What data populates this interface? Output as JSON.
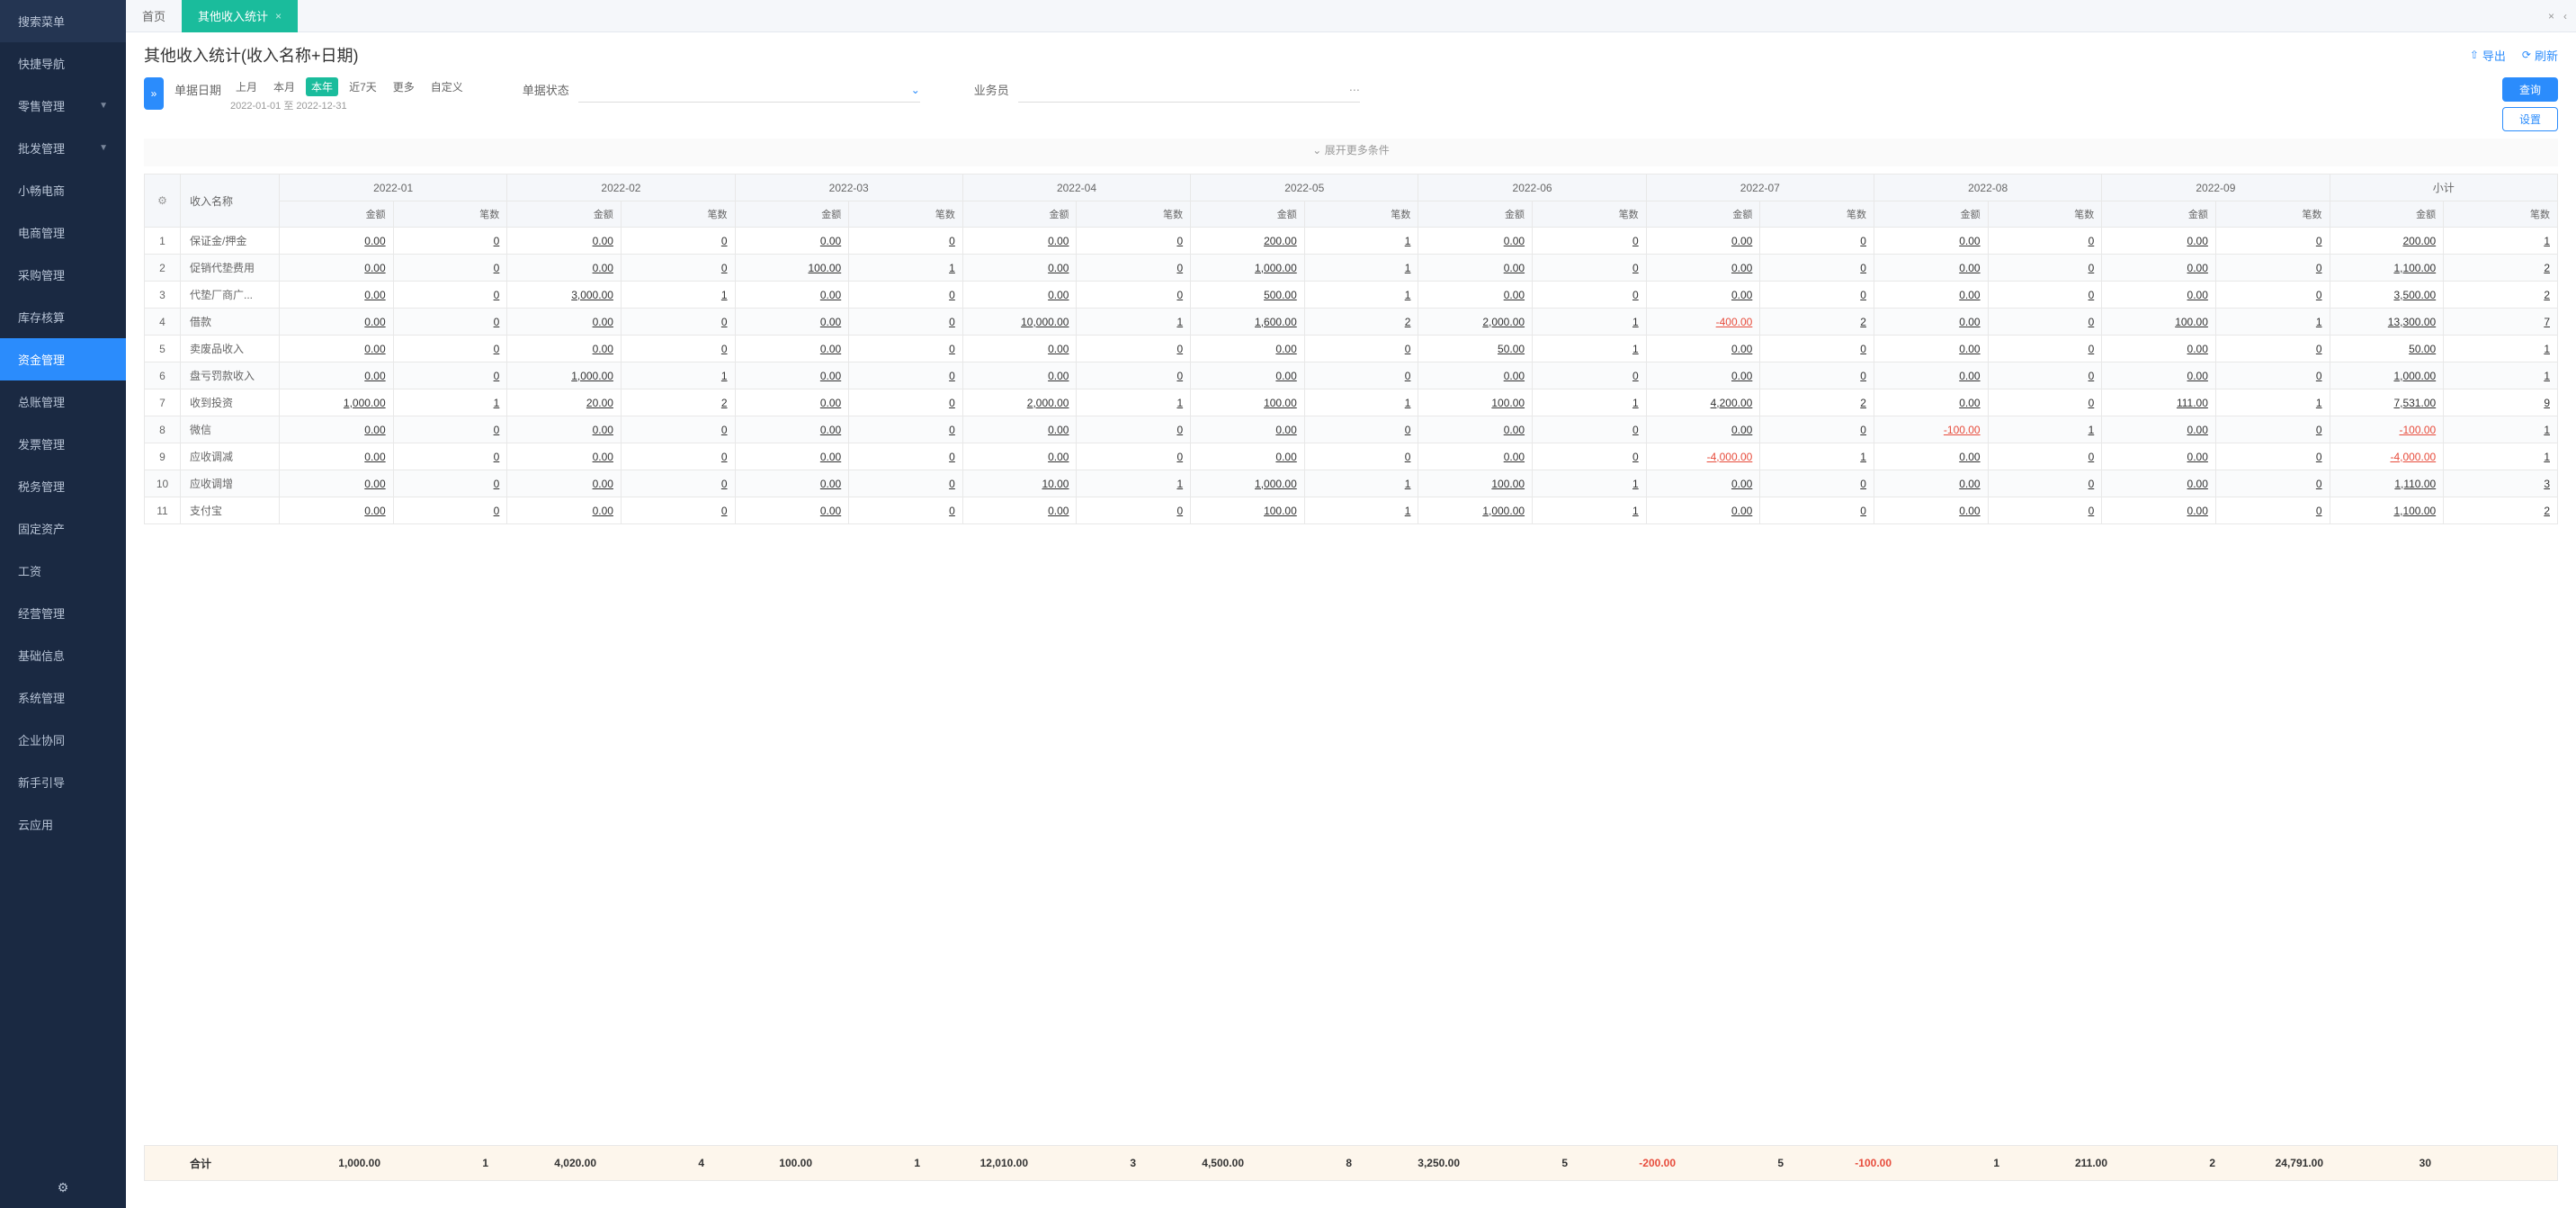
{
  "sidebar": {
    "items": [
      {
        "label": "搜索菜单",
        "expandable": false
      },
      {
        "label": "快捷导航",
        "expandable": false
      },
      {
        "label": "零售管理",
        "expandable": true
      },
      {
        "label": "批发管理",
        "expandable": true
      },
      {
        "label": "小畅电商",
        "expandable": false
      },
      {
        "label": "电商管理",
        "expandable": false
      },
      {
        "label": "采购管理",
        "expandable": false
      },
      {
        "label": "库存核算",
        "expandable": false
      },
      {
        "label": "资金管理",
        "expandable": false,
        "active": true
      },
      {
        "label": "总账管理",
        "expandable": false
      },
      {
        "label": "发票管理",
        "expandable": false
      },
      {
        "label": "税务管理",
        "expandable": false
      },
      {
        "label": "固定资产",
        "expandable": false
      },
      {
        "label": "工资",
        "expandable": false
      },
      {
        "label": "经营管理",
        "expandable": false
      },
      {
        "label": "基础信息",
        "expandable": false
      },
      {
        "label": "系统管理",
        "expandable": false
      },
      {
        "label": "企业协同",
        "expandable": false
      },
      {
        "label": "新手引导",
        "expandable": false
      },
      {
        "label": "云应用",
        "expandable": false
      }
    ]
  },
  "tabs": {
    "home": "首页",
    "current": "其他收入统计"
  },
  "title": "其他收入统计(收入名称+日期)",
  "title_actions": {
    "export": "导出",
    "refresh": "刷新"
  },
  "filters": {
    "date_label": "单据日期",
    "date_options": [
      "上月",
      "本月",
      "本年",
      "近7天",
      "更多",
      "自定义"
    ],
    "date_active_index": 2,
    "date_range": "2022-01-01 至 2022-12-31",
    "status_label": "单据状态",
    "biz_label": "业务员",
    "query_btn": "查询",
    "settings_btn": "设置",
    "expand_more": "展开更多条件"
  },
  "table": {
    "name_header": "收入名称",
    "amount_header": "金额",
    "count_header": "笔数",
    "subtotal_header": "小计",
    "total_label": "合计",
    "periods": [
      "2022-01",
      "2022-02",
      "2022-03",
      "2022-04",
      "2022-05",
      "2022-06",
      "2022-07",
      "2022-08",
      "2022-09"
    ],
    "rows": [
      {
        "idx": 1,
        "name": "保证金/押金",
        "vals": [
          [
            "0.00",
            0
          ],
          [
            "0.00",
            0
          ],
          [
            "0.00",
            0
          ],
          [
            "0.00",
            0
          ],
          [
            "200.00",
            1
          ],
          [
            "0.00",
            0
          ],
          [
            "0.00",
            0
          ],
          [
            "0.00",
            0
          ],
          [
            "0.00",
            0
          ]
        ],
        "sub": [
          "200.00",
          1
        ]
      },
      {
        "idx": 2,
        "name": "促销代垫费用",
        "vals": [
          [
            "0.00",
            0
          ],
          [
            "0.00",
            0
          ],
          [
            "100.00",
            1
          ],
          [
            "0.00",
            0
          ],
          [
            "1,000.00",
            1
          ],
          [
            "0.00",
            0
          ],
          [
            "0.00",
            0
          ],
          [
            "0.00",
            0
          ],
          [
            "0.00",
            0
          ]
        ],
        "sub": [
          "1,100.00",
          2
        ]
      },
      {
        "idx": 3,
        "name": "代垫厂商广...",
        "vals": [
          [
            "0.00",
            0
          ],
          [
            "3,000.00",
            1
          ],
          [
            "0.00",
            0
          ],
          [
            "0.00",
            0
          ],
          [
            "500.00",
            1
          ],
          [
            "0.00",
            0
          ],
          [
            "0.00",
            0
          ],
          [
            "0.00",
            0
          ],
          [
            "0.00",
            0
          ]
        ],
        "sub": [
          "3,500.00",
          2
        ]
      },
      {
        "idx": 4,
        "name": "借款",
        "vals": [
          [
            "0.00",
            0
          ],
          [
            "0.00",
            0
          ],
          [
            "0.00",
            0
          ],
          [
            "10,000.00",
            1
          ],
          [
            "1,600.00",
            2
          ],
          [
            "2,000.00",
            1
          ],
          [
            "-400.00",
            2
          ],
          [
            "0.00",
            0
          ],
          [
            "100.00",
            1
          ]
        ],
        "sub": [
          "13,300.00",
          7
        ]
      },
      {
        "idx": 5,
        "name": "卖废品收入",
        "vals": [
          [
            "0.00",
            0
          ],
          [
            "0.00",
            0
          ],
          [
            "0.00",
            0
          ],
          [
            "0.00",
            0
          ],
          [
            "0.00",
            0
          ],
          [
            "50.00",
            1
          ],
          [
            "0.00",
            0
          ],
          [
            "0.00",
            0
          ],
          [
            "0.00",
            0
          ]
        ],
        "sub": [
          "50.00",
          1
        ]
      },
      {
        "idx": 6,
        "name": "盘亏罚款收入",
        "vals": [
          [
            "0.00",
            0
          ],
          [
            "1,000.00",
            1
          ],
          [
            "0.00",
            0
          ],
          [
            "0.00",
            0
          ],
          [
            "0.00",
            0
          ],
          [
            "0.00",
            0
          ],
          [
            "0.00",
            0
          ],
          [
            "0.00",
            0
          ],
          [
            "0.00",
            0
          ]
        ],
        "sub": [
          "1,000.00",
          1
        ]
      },
      {
        "idx": 7,
        "name": "收到投资",
        "vals": [
          [
            "1,000.00",
            1
          ],
          [
            "20.00",
            2
          ],
          [
            "0.00",
            0
          ],
          [
            "2,000.00",
            1
          ],
          [
            "100.00",
            1
          ],
          [
            "100.00",
            1
          ],
          [
            "4,200.00",
            2
          ],
          [
            "0.00",
            0
          ],
          [
            "111.00",
            1
          ]
        ],
        "sub": [
          "7,531.00",
          9
        ]
      },
      {
        "idx": 8,
        "name": "微信",
        "vals": [
          [
            "0.00",
            0
          ],
          [
            "0.00",
            0
          ],
          [
            "0.00",
            0
          ],
          [
            "0.00",
            0
          ],
          [
            "0.00",
            0
          ],
          [
            "0.00",
            0
          ],
          [
            "0.00",
            0
          ],
          [
            "-100.00",
            1
          ],
          [
            "0.00",
            0
          ]
        ],
        "sub": [
          "-100.00",
          1
        ]
      },
      {
        "idx": 9,
        "name": "应收调减",
        "vals": [
          [
            "0.00",
            0
          ],
          [
            "0.00",
            0
          ],
          [
            "0.00",
            0
          ],
          [
            "0.00",
            0
          ],
          [
            "0.00",
            0
          ],
          [
            "0.00",
            0
          ],
          [
            "-4,000.00",
            1
          ],
          [
            "0.00",
            0
          ],
          [
            "0.00",
            0
          ]
        ],
        "sub": [
          "-4,000.00",
          1
        ]
      },
      {
        "idx": 10,
        "name": "应收调增",
        "vals": [
          [
            "0.00",
            0
          ],
          [
            "0.00",
            0
          ],
          [
            "0.00",
            0
          ],
          [
            "10.00",
            1
          ],
          [
            "1,000.00",
            1
          ],
          [
            "100.00",
            1
          ],
          [
            "0.00",
            0
          ],
          [
            "0.00",
            0
          ],
          [
            "0.00",
            0
          ]
        ],
        "sub": [
          "1,110.00",
          3
        ]
      },
      {
        "idx": 11,
        "name": "支付宝",
        "vals": [
          [
            "0.00",
            0
          ],
          [
            "0.00",
            0
          ],
          [
            "0.00",
            0
          ],
          [
            "0.00",
            0
          ],
          [
            "100.00",
            1
          ],
          [
            "1,000.00",
            1
          ],
          [
            "0.00",
            0
          ],
          [
            "0.00",
            0
          ],
          [
            "0.00",
            0
          ]
        ],
        "sub": [
          "1,100.00",
          2
        ]
      }
    ],
    "totals": {
      "vals": [
        [
          "1,000.00",
          1
        ],
        [
          "4,020.00",
          4
        ],
        [
          "100.00",
          1
        ],
        [
          "12,010.00",
          3
        ],
        [
          "4,500.00",
          8
        ],
        [
          "3,250.00",
          5
        ],
        [
          "-200.00",
          5
        ],
        [
          "-100.00",
          1
        ],
        [
          "211.00",
          2
        ]
      ],
      "sub": [
        "24,791.00",
        30
      ]
    }
  }
}
